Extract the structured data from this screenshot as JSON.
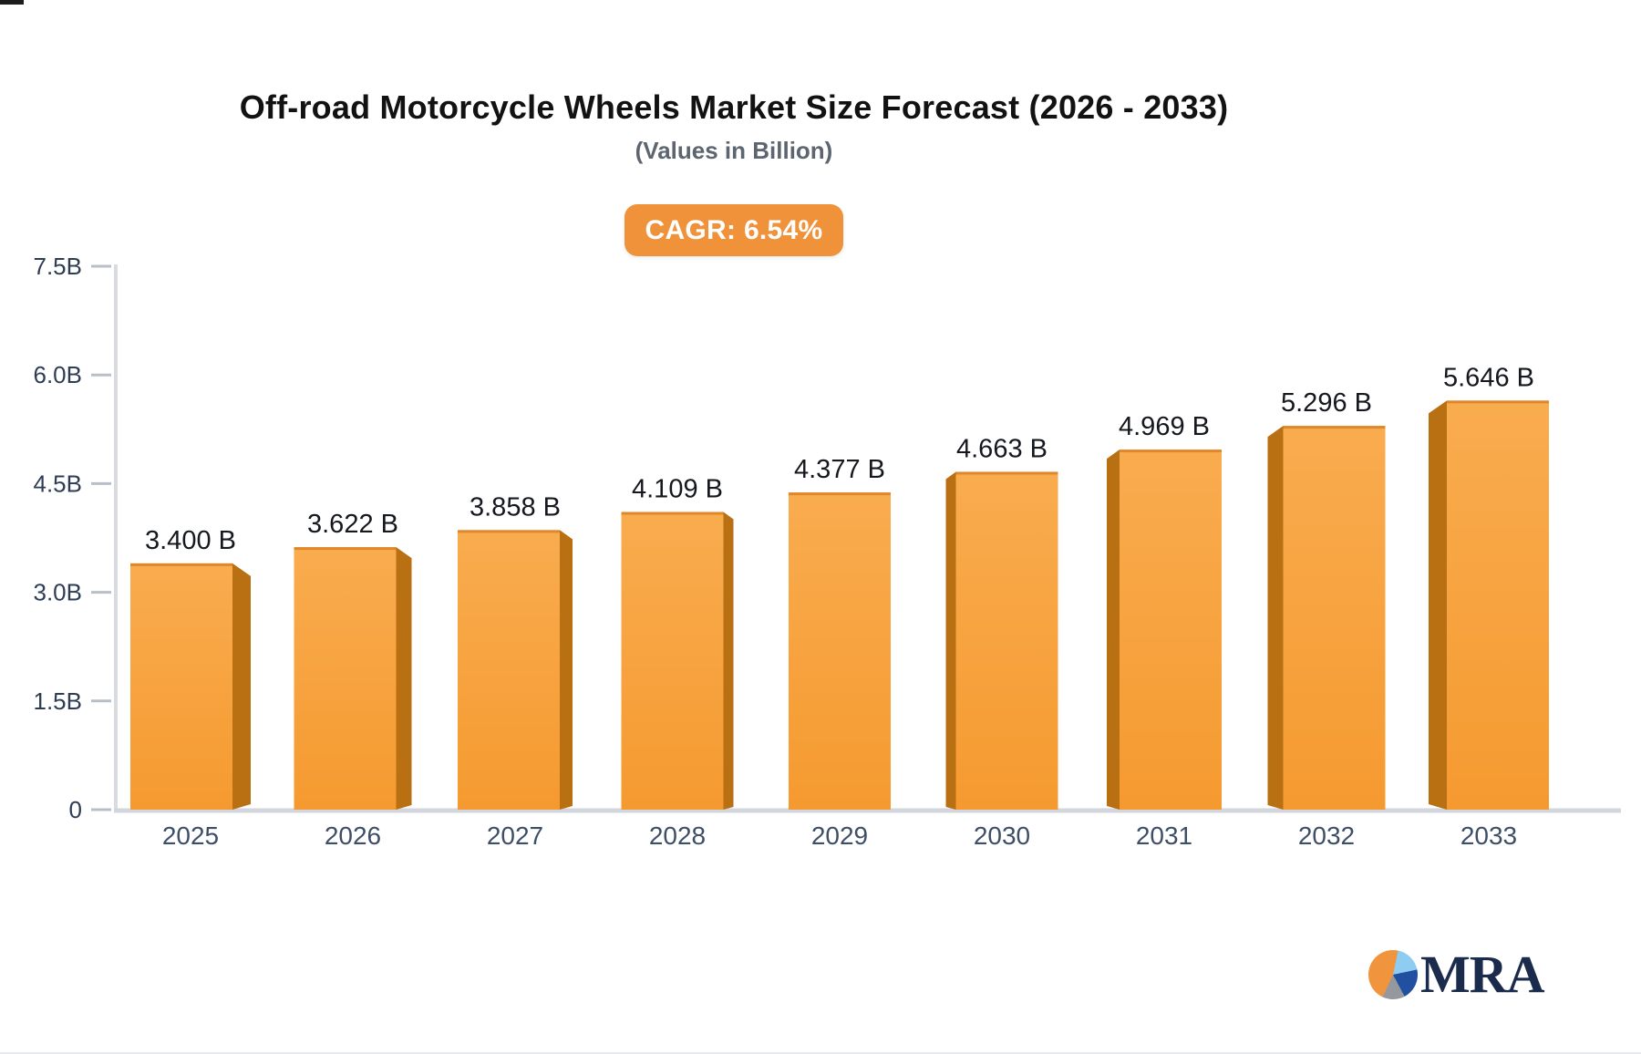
{
  "header": {
    "title": "Off-road Motorcycle Wheels Market Size Forecast (2026 - 2033)",
    "subtitle": "(Values in Billion)"
  },
  "badge": {
    "label": "CAGR: 6.54%"
  },
  "logo": {
    "text": "MRA"
  },
  "chart_data": {
    "type": "bar",
    "bar_style": "3d-perspective",
    "title": "Off-road Motorcycle Wheels Market Size Forecast (2026 - 2033)",
    "subtitle": "(Values in Billion)",
    "cagr_label": "CAGR: 6.54%",
    "categories": [
      "2025",
      "2026",
      "2027",
      "2028",
      "2029",
      "2030",
      "2031",
      "2032",
      "2033"
    ],
    "values": [
      3.4,
      3.622,
      3.858,
      4.109,
      4.377,
      4.663,
      4.969,
      5.296,
      5.646
    ],
    "value_labels": [
      "3.400 B",
      "3.622 B",
      "3.858 B",
      "4.109 B",
      "4.377 B",
      "4.663 B",
      "4.969 B",
      "5.296 B",
      "5.646 B"
    ],
    "xlabel": "",
    "ylabel": "",
    "ylim": [
      0,
      7.5
    ],
    "yticks": [
      0,
      1.5,
      3.0,
      4.5,
      6.0,
      7.5
    ],
    "ytick_labels": [
      "0",
      "1.5B",
      "3.0B",
      "4.5B",
      "6.0B",
      "7.5B"
    ],
    "grid": false,
    "legend": false,
    "colors": {
      "bar_top": "#f9ac4f",
      "bar_bottom": "#f59a30",
      "bar_side": "#b87013",
      "bar_top_edge": "#e0862b",
      "axis": "#d9dbe1",
      "baseline": "#d3d6dc",
      "tick_dash": "#b9bfc8",
      "tick_label": "#2e3d54",
      "x_label": "#3e4e66",
      "value_label": "#15181e",
      "badge_bg": "#f0923a",
      "badge_text": "#ffffff",
      "logo_text": "#1b2b4c"
    }
  }
}
